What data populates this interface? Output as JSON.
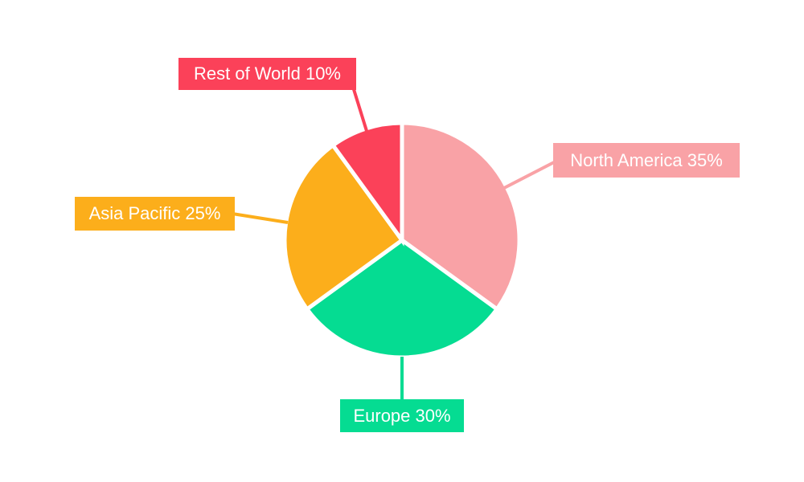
{
  "chart_data": {
    "type": "pie",
    "title": "",
    "categories": [
      "North America",
      "Europe",
      "Asia Pacific",
      "Rest of World"
    ],
    "values": [
      35,
      30,
      25,
      10
    ],
    "unit": "%",
    "start_angle_deg_from_top": 0,
    "direction": "clockwise",
    "legend_position": "none",
    "grid": false,
    "background_color": "#FFFFFF",
    "label_text_color": "#FFFFFF",
    "slice_gap_color": "#FFFFFF",
    "slices": [
      {
        "label": "North America",
        "value": 35,
        "display": "North America 35%",
        "color": "#F9A2A6"
      },
      {
        "label": "Europe",
        "value": 30,
        "display": "Europe 30%",
        "color": "#05DC92"
      },
      {
        "label": "Asia Pacific",
        "value": 25,
        "display": "Asia Pacific 25%",
        "color": "#FCAE1B"
      },
      {
        "label": "Rest of World",
        "value": 10,
        "display": "Rest of World 10%",
        "color": "#FB4159"
      }
    ]
  }
}
